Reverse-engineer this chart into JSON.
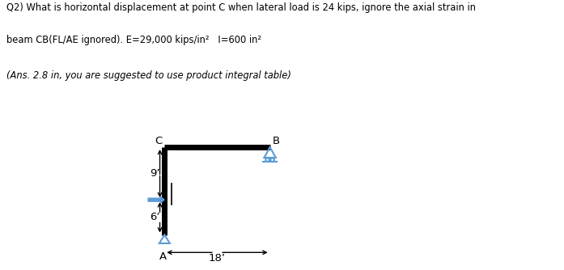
{
  "title_line1": "Q2) What is horizontal displacement at point C when lateral load is 24 kips, ignore the axial strain in",
  "title_line2": "beam CB(FL/AE ignored). E=29,000 kips/in²   I=600 in²",
  "ans_line": "(Ans. 2.8 in, you are suggested to use product integral table)",
  "label_C": "C",
  "label_B": "B",
  "label_A": "A",
  "label_9ft": "9’",
  "label_6ft": "6’",
  "label_18ft": "18’",
  "struct_color": "black",
  "support_color": "#5b9bd5",
  "arrow_color": "#5b9bd5",
  "background": "white",
  "line_width": 5
}
